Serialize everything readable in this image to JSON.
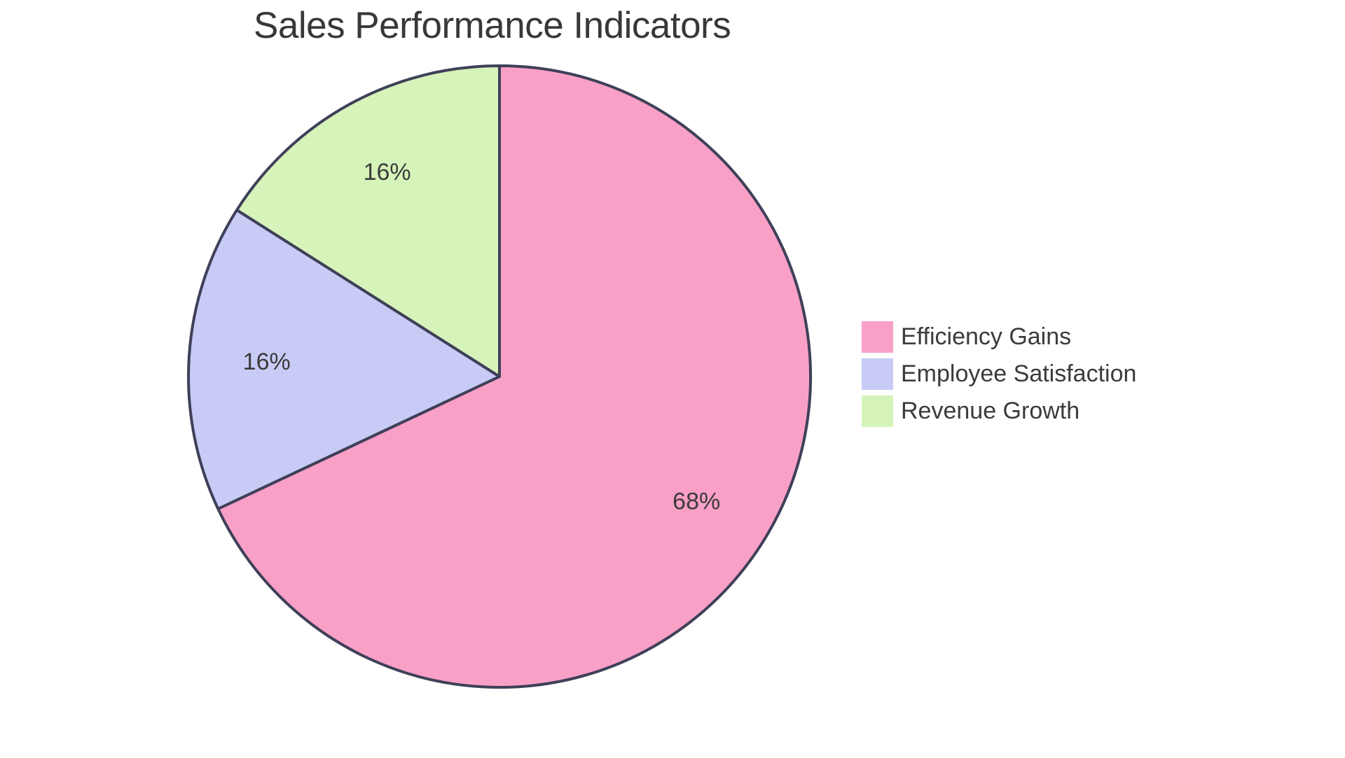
{
  "chart_data": {
    "type": "pie",
    "title": "Sales Performance Indicators",
    "labels": [
      "Efficiency Gains",
      "Employee Satisfaction",
      "Revenue Growth"
    ],
    "values": [
      68,
      16,
      16
    ],
    "percent_labels": [
      "68%",
      "16%",
      "16%"
    ],
    "colors": [
      "#F9A0C7",
      "#C9CBF7",
      "#D6F3BA"
    ],
    "stroke_color": "#3F4058",
    "stroke_width": 4,
    "start_position": "top",
    "direction": "clockwise",
    "legend_position": "right",
    "label_radius_fraction": 0.75,
    "text_color": "#3B3B3B",
    "title_color": "#383838",
    "background": "#FFFFFF"
  }
}
